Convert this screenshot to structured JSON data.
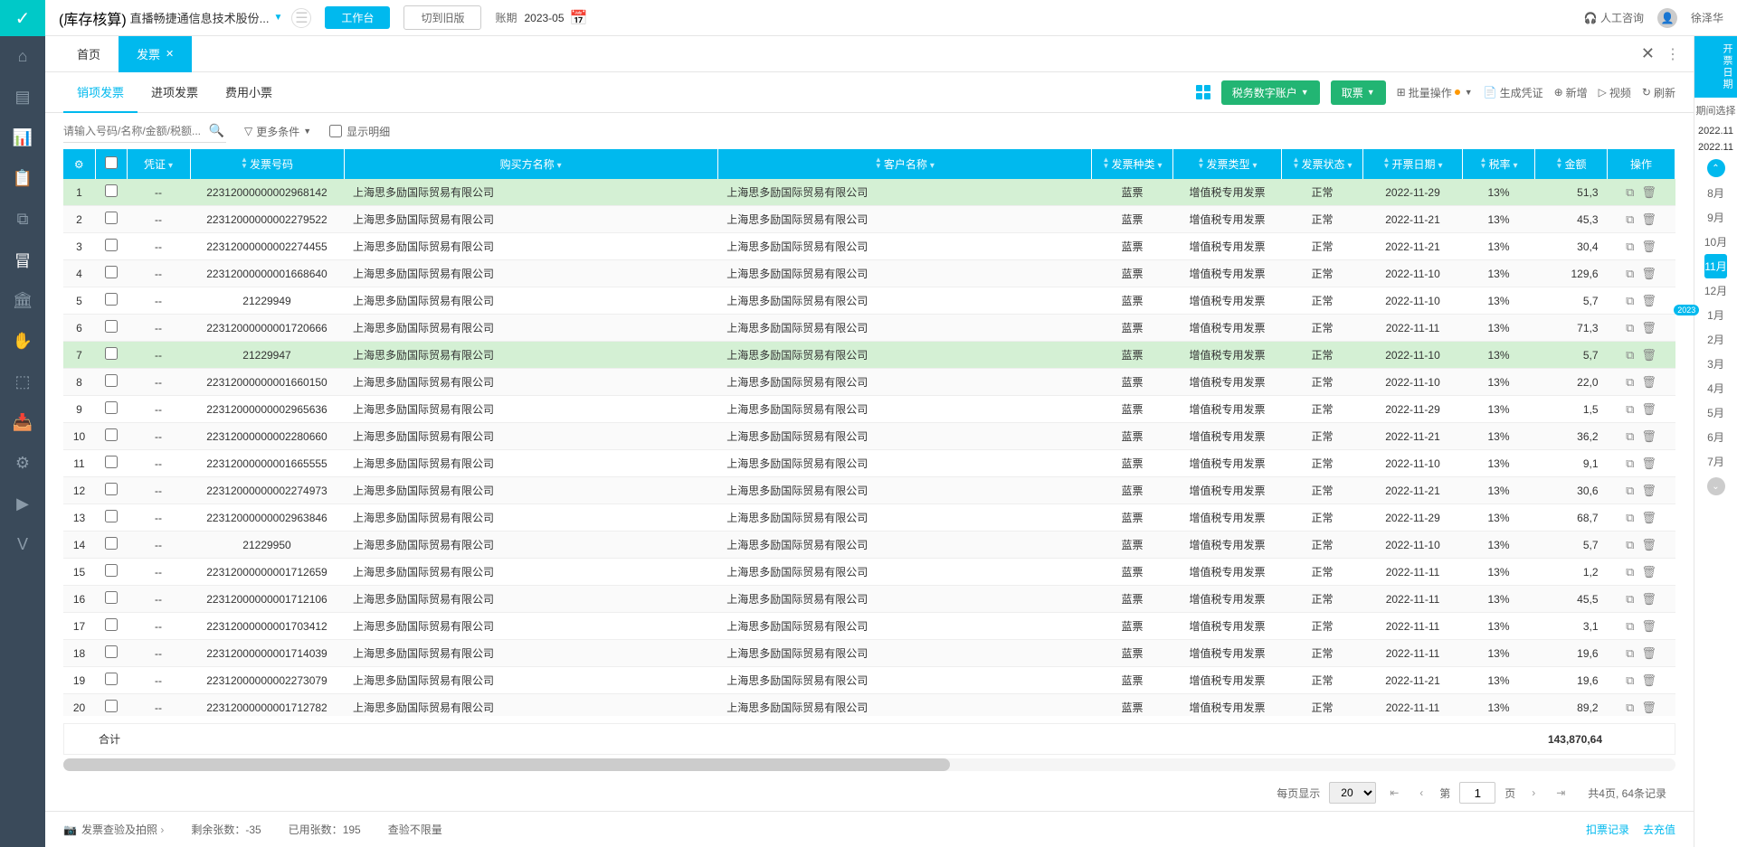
{
  "header": {
    "org_prefix": "(库存核算)",
    "org_name": "直播畅捷通信息技术股份...",
    "workspace_btn": "工作台",
    "switch_btn": "切到旧版",
    "period_label": "账期",
    "period_value": "2023-05",
    "consult": "人工咨询",
    "username": "徐泽华"
  },
  "tabs": {
    "home": "首页",
    "invoice": "发票"
  },
  "sub_tabs": {
    "sales": "销项发票",
    "purchase": "进项发票",
    "expense": "费用小票"
  },
  "toolbar": {
    "tax_account": "税务数字账户",
    "get_invoice": "取票",
    "batch_ops": "批量操作",
    "gen_voucher": "生成凭证",
    "add_new": "新增",
    "video": "视频",
    "refresh": "刷新"
  },
  "filter": {
    "search_placeholder": "请输入号码/名称/金额/税额...",
    "more_conditions": "更多条件",
    "show_detail": "显示明细"
  },
  "columns": {
    "gear": "⚙",
    "voucher": "凭证",
    "invoice_no": "发票号码",
    "buyer_name": "购买方名称",
    "customer_name": "客户名称",
    "invoice_kind": "发票种类",
    "invoice_type": "发票类型",
    "invoice_status": "发票状态",
    "issue_date": "开票日期",
    "tax_rate": "税率",
    "amount": "金额",
    "actions": "操作"
  },
  "buyer": "上海思多励国际贸易有限公司",
  "customer": "上海思多励国际贸易有限公司",
  "kind": "蓝票",
  "type": "增值税专用发票",
  "status": "正常",
  "rows": [
    {
      "n": 1,
      "hl": true,
      "no": "22312000000002968142",
      "date": "2022-11-29",
      "rate": "13%",
      "amt": "51,3"
    },
    {
      "n": 2,
      "hl": false,
      "no": "22312000000002279522",
      "date": "2022-11-21",
      "rate": "13%",
      "amt": "45,3"
    },
    {
      "n": 3,
      "hl": false,
      "no": "22312000000002274455",
      "date": "2022-11-21",
      "rate": "13%",
      "amt": "30,4"
    },
    {
      "n": 4,
      "hl": false,
      "no": "22312000000001668640",
      "date": "2022-11-10",
      "rate": "13%",
      "amt": "129,6"
    },
    {
      "n": 5,
      "hl": false,
      "no": "21229949",
      "date": "2022-11-10",
      "rate": "13%",
      "amt": "5,7"
    },
    {
      "n": 6,
      "hl": false,
      "no": "22312000000001720666",
      "date": "2022-11-11",
      "rate": "13%",
      "amt": "71,3"
    },
    {
      "n": 7,
      "hl": true,
      "no": "21229947",
      "date": "2022-11-10",
      "rate": "13%",
      "amt": "5,7"
    },
    {
      "n": 8,
      "hl": false,
      "no": "22312000000001660150",
      "date": "2022-11-10",
      "rate": "13%",
      "amt": "22,0"
    },
    {
      "n": 9,
      "hl": false,
      "no": "22312000000002965636",
      "date": "2022-11-29",
      "rate": "13%",
      "amt": "1,5"
    },
    {
      "n": 10,
      "hl": false,
      "no": "22312000000002280660",
      "date": "2022-11-21",
      "rate": "13%",
      "amt": "36,2"
    },
    {
      "n": 11,
      "hl": false,
      "no": "22312000000001665555",
      "date": "2022-11-10",
      "rate": "13%",
      "amt": "9,1"
    },
    {
      "n": 12,
      "hl": false,
      "no": "22312000000002274973",
      "date": "2022-11-21",
      "rate": "13%",
      "amt": "30,6"
    },
    {
      "n": 13,
      "hl": false,
      "no": "22312000000002963846",
      "date": "2022-11-29",
      "rate": "13%",
      "amt": "68,7"
    },
    {
      "n": 14,
      "hl": false,
      "no": "21229950",
      "date": "2022-11-10",
      "rate": "13%",
      "amt": "5,7"
    },
    {
      "n": 15,
      "hl": false,
      "no": "22312000000001712659",
      "date": "2022-11-11",
      "rate": "13%",
      "amt": "1,2"
    },
    {
      "n": 16,
      "hl": false,
      "no": "22312000000001712106",
      "date": "2022-11-11",
      "rate": "13%",
      "amt": "45,5"
    },
    {
      "n": 17,
      "hl": false,
      "no": "22312000000001703412",
      "date": "2022-11-11",
      "rate": "13%",
      "amt": "3,1"
    },
    {
      "n": 18,
      "hl": false,
      "no": "22312000000001714039",
      "date": "2022-11-11",
      "rate": "13%",
      "amt": "19,6"
    },
    {
      "n": 19,
      "hl": false,
      "no": "22312000000002273079",
      "date": "2022-11-21",
      "rate": "13%",
      "amt": "19,6"
    },
    {
      "n": 20,
      "hl": false,
      "no": "22312000000001712782",
      "date": "2022-11-11",
      "rate": "13%",
      "amt": "89,2"
    }
  ],
  "total": {
    "label": "合计",
    "amount": "143,870,64"
  },
  "pagination": {
    "per_page_label": "每页显示",
    "per_page_value": "20",
    "page_label_prefix": "第",
    "page_value": "1",
    "page_label_suffix": "页",
    "summary": "共4页, 64条记录"
  },
  "footer": {
    "verify_label": "发票查验及拍照",
    "remaining_label": "剩余张数：",
    "remaining_value": "-35",
    "used_label": "已用张数：",
    "used_value": "195",
    "verify_unlimited": "查验不限量",
    "deduct_records": "扣票记录",
    "recharge": "去充值"
  },
  "right_panel": {
    "header": "开票日期",
    "sub": "期间选择",
    "year1": "2022.11",
    "year2": "2022.11",
    "months": [
      "8月",
      "9月",
      "10月",
      "11月",
      "12月",
      "1月",
      "2月",
      "3月",
      "4月",
      "5月",
      "6月",
      "7月"
    ],
    "active_month_idx": 3,
    "year_badge": "2023"
  },
  "colors": {
    "primary": "#00b9ee",
    "green": "#22b573",
    "highlight": "#d4f0d4",
    "sidebar": "#3a4a5a"
  }
}
